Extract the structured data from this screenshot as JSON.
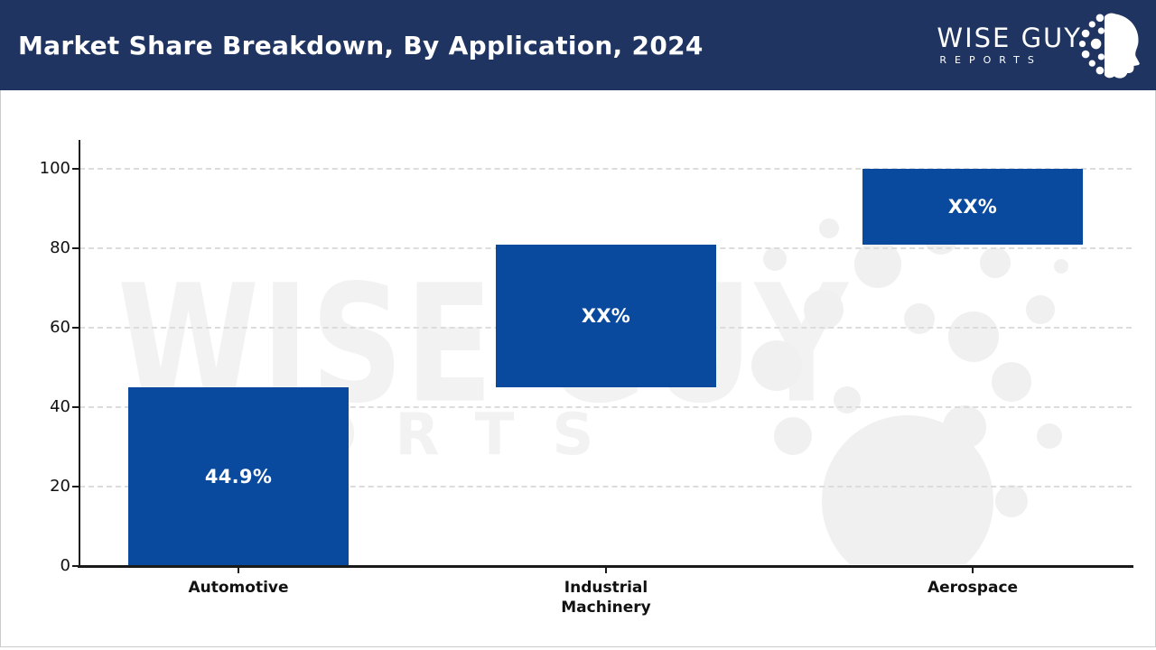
{
  "header": {
    "title": "Market Share Breakdown, By Application, 2024",
    "logo": {
      "wordmark": "WISE GUY",
      "subtext": "REPORTS"
    }
  },
  "watermark": {
    "line1": "WISE GUY",
    "line2": "PORTS"
  },
  "chart_data": {
    "type": "bar",
    "variant": "waterfall",
    "title": "Market Share Breakdown, By Application, 2024",
    "categories": [
      "Automotive",
      "Industrial Machinery",
      "Aerospace"
    ],
    "segments": [
      {
        "category": "Automotive",
        "start": 0,
        "end": 44.9,
        "label": "44.9%"
      },
      {
        "category": "Industrial Machinery",
        "start": 45,
        "end": 81,
        "label": "XX%"
      },
      {
        "category": "Aerospace",
        "start": 81,
        "end": 100,
        "label": "XX%"
      }
    ],
    "yticks": [
      0,
      20,
      40,
      60,
      80,
      100
    ],
    "ylim": [
      0,
      105
    ],
    "xlabel": "",
    "ylabel": "",
    "grid": "horizontal-dashed",
    "legend": "none",
    "colors": {
      "bar": "#0a4a9e",
      "header_background": "#1f3460",
      "gridline": "#dcdcdc",
      "axis": "#1a1a1a",
      "value_label": "#ffffff",
      "watermark": "#f2f2f2"
    }
  }
}
